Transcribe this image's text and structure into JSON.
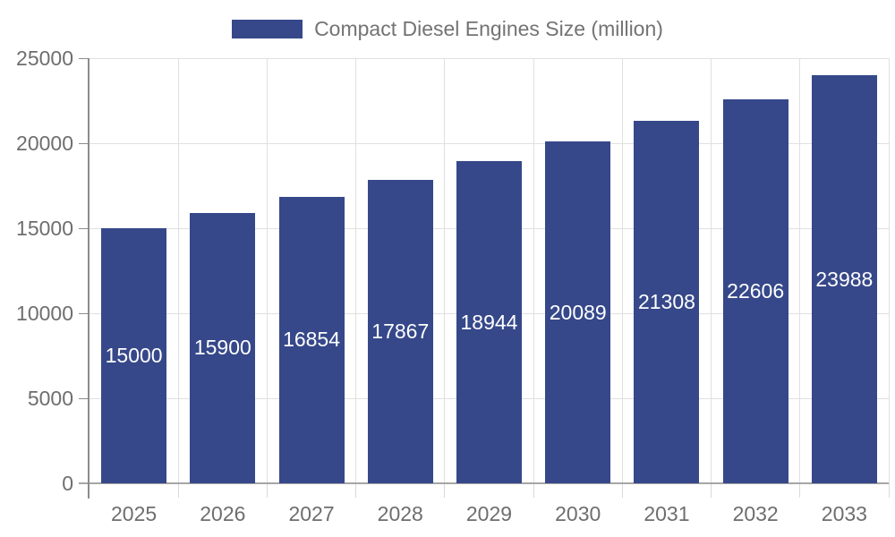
{
  "chart_data": {
    "type": "bar",
    "title": "",
    "legend": "Compact Diesel Engines Size (million)",
    "legend_position": "top-center",
    "categories": [
      "2025",
      "2026",
      "2027",
      "2028",
      "2029",
      "2030",
      "2031",
      "2032",
      "2033"
    ],
    "series": [
      {
        "name": "Compact Diesel Engines Size (million)",
        "values": [
          15000,
          15900,
          16854,
          17867,
          18944,
          20089,
          21308,
          22606,
          23988
        ]
      }
    ],
    "value_labels_shown": true,
    "xlabel": "",
    "ylabel": "",
    "ylim": [
      0,
      25000
    ],
    "yticks": [
      0,
      5000,
      10000,
      15000,
      20000,
      25000
    ],
    "grid": "on",
    "colors": {
      "bar": "#36488a",
      "bar_value_label": "#ffffff",
      "legend_text": "#737373",
      "axis_text": "#6e6e6e",
      "axis_line": "#8c8c8c",
      "xaxis_line": "#a6a6a6",
      "gridline": "#e0e0e0"
    }
  }
}
